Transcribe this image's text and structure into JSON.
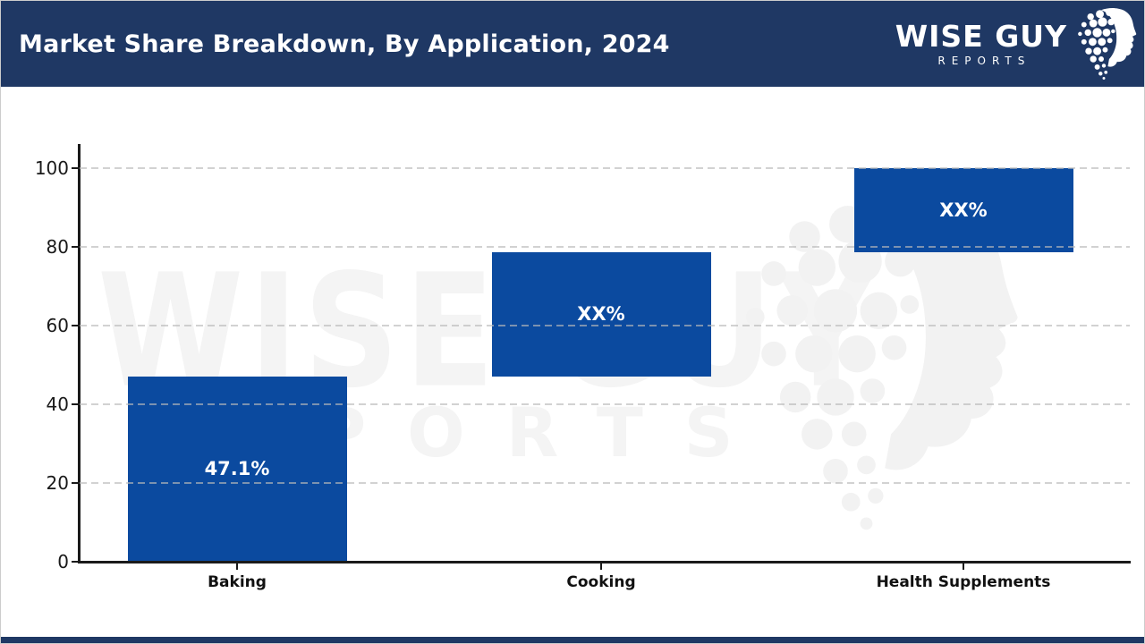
{
  "header": {
    "title": "Market Share Breakdown, By Application, 2024",
    "logo": {
      "line1": "WISE GUY",
      "line2": "REPORTS"
    }
  },
  "watermark": {
    "line1": "WISE GUY",
    "line2": "REPORTS"
  },
  "chart_data": {
    "type": "bar",
    "subtype": "waterfall",
    "title": "Market Share Breakdown, By Application, 2024",
    "categories": [
      "Baking",
      "Cooking",
      "Health Supplements"
    ],
    "segments": [
      {
        "category": "Baking",
        "start": 0,
        "end": 47.1,
        "label": "47.1%"
      },
      {
        "category": "Cooking",
        "start": 47.1,
        "end": 78.6,
        "label": "XX%"
      },
      {
        "category": "Health Supplements",
        "start": 78.6,
        "end": 100,
        "label": "XX%"
      }
    ],
    "xlabel": "",
    "ylabel": "",
    "ylim": [
      0,
      100
    ],
    "yticks": [
      0,
      20,
      40,
      60,
      80,
      100
    ],
    "grid": {
      "horizontal": true,
      "style": "dashed"
    },
    "legend": "none",
    "bar_color": "#0B4A9F",
    "bar_label_color": "#FFFFFF"
  },
  "colors": {
    "header_bg": "#1F3864",
    "footer_bg": "#1F3864",
    "bar": "#0B4A9F",
    "gridline": "#D9D9D9",
    "axis": "#1A1A1A",
    "watermark": "#F3F3F3",
    "page_border": "#CCCCCC"
  }
}
